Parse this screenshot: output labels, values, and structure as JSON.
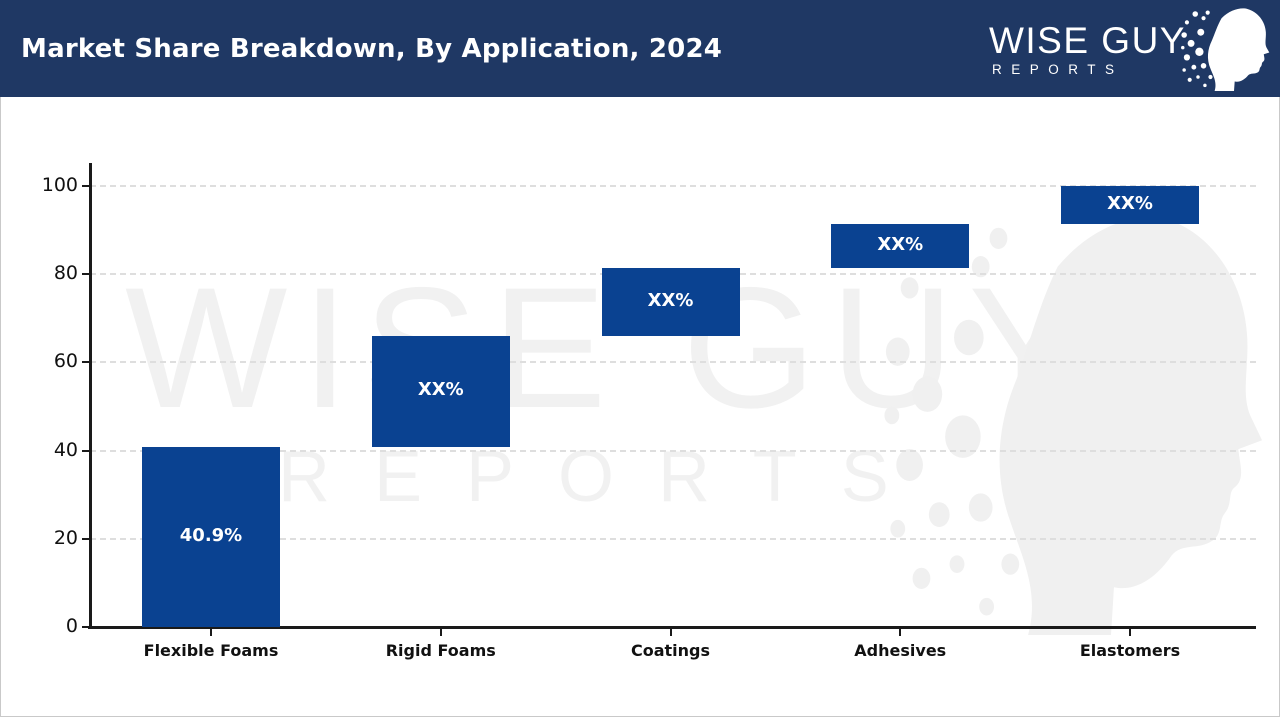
{
  "header": {
    "title": "Market Share Breakdown, By Application, 2024",
    "logo": {
      "brand": "WISE GUY",
      "brand_sub": "REPORTS"
    }
  },
  "watermark": {
    "brand": "WISE GUY",
    "brand_sub": "REPORTS"
  },
  "colors": {
    "header_bg": "#1f3864",
    "bar": "#0a4291",
    "grid": "#dedede",
    "axis": "#1a1a1a",
    "watermark": "#f1f1f1",
    "bar_label_text": "#ffffff"
  },
  "chart_data": {
    "type": "bar",
    "subtype": "waterfall",
    "title": "Market Share Breakdown, By Application, 2024",
    "categories": [
      "Flexible Foams",
      "Rigid Foams",
      "Coatings",
      "Adhesives",
      "Elastomers"
    ],
    "segments": [
      {
        "category": "Flexible Foams",
        "start": 0,
        "end": 40.9,
        "label": "40.9%"
      },
      {
        "category": "Rigid Foams",
        "start": 40.9,
        "end": 66.0,
        "label": "XX%"
      },
      {
        "category": "Coatings",
        "start": 66.0,
        "end": 81.4,
        "label": "XX%"
      },
      {
        "category": "Adhesives",
        "start": 81.4,
        "end": 91.3,
        "label": "XX%"
      },
      {
        "category": "Elastomers",
        "start": 91.3,
        "end": 100.0,
        "label": "XX%"
      }
    ],
    "values_pct": [
      40.9,
      25.1,
      15.4,
      9.9,
      8.7
    ],
    "ylim": [
      0,
      100
    ],
    "yticks": [
      0,
      20,
      40,
      60,
      80,
      100
    ],
    "grid": "horizontal-dashed",
    "legend": "none",
    "xlabel": "",
    "ylabel": ""
  }
}
